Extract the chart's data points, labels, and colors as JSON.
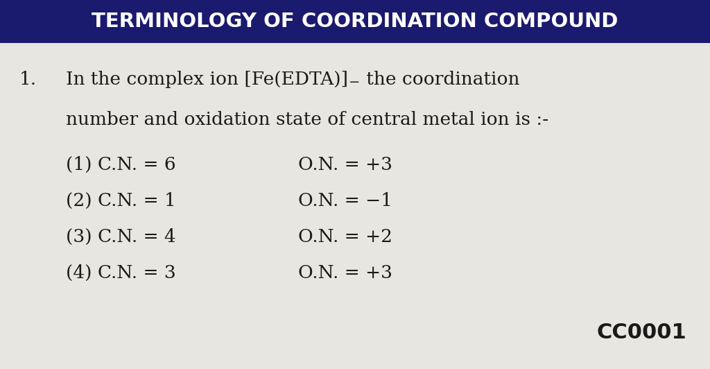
{
  "bg_color": "#e8e6e0",
  "header_bg": "#1a1a6e",
  "header_text": "TERMINOLOGY OF COORDINATION COMPOUND",
  "header_color": "#ffffff",
  "text_color": "#1a1a1a",
  "q_num": "1.",
  "q_line1a": "In the complex ion [Fe(EDTA)]",
  "q_line1_sup": "−",
  "q_line1b": " the coordination",
  "q_line2": "number and oxidation state of central metal ion is :-",
  "options": [
    {
      "label": "(1) C.N. = 6",
      "on": "O.N. = +3"
    },
    {
      "label": "(2) C.N. = 1",
      "on": "O.N. = −1"
    },
    {
      "label": "(3) C.N. = 4",
      "on": "O.N. = +2"
    },
    {
      "label": "(4) C.N. = 3",
      "on": "O.N. = +3"
    }
  ],
  "code": "CC0001",
  "header_fontsize": 21,
  "body_fontsize": 19,
  "opt_fontsize": 19,
  "code_fontsize": 22
}
